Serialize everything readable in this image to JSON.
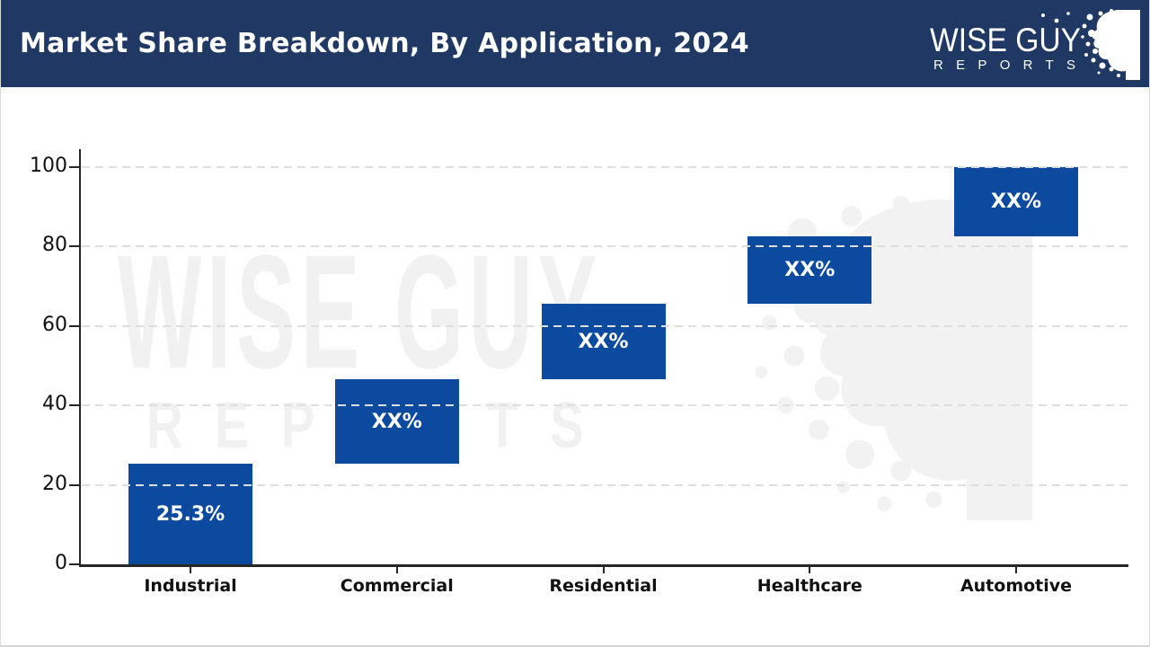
{
  "header": {
    "title": "Market Share Breakdown, By Application, 2024",
    "bg": "#1F3864",
    "logo": {
      "line1": "WISE GUY",
      "line2": "REPORTS"
    }
  },
  "watermark": {
    "line1": "WISE GUY",
    "line2": "REPORTS"
  },
  "chart_data": {
    "type": "bar",
    "subtype": "waterfall",
    "title": "Market Share Breakdown, By Application, 2024",
    "xlabel": "",
    "ylabel": "",
    "categories": [
      "Industrial",
      "Commercial",
      "Residential",
      "Healthcare",
      "Automotive"
    ],
    "segments": [
      {
        "category": "Industrial",
        "start": 0,
        "end": 25.3,
        "label": "25.3%"
      },
      {
        "category": "Commercial",
        "start": 25.3,
        "end": 46.6,
        "label": "XX%"
      },
      {
        "category": "Residential",
        "start": 46.6,
        "end": 65.5,
        "label": "XX%"
      },
      {
        "category": "Healthcare",
        "start": 65.5,
        "end": 82.5,
        "label": "XX%"
      },
      {
        "category": "Automotive",
        "start": 82.5,
        "end": 100,
        "label": "XX%"
      }
    ],
    "yticks": [
      0,
      20,
      40,
      60,
      80,
      100
    ],
    "ylim": [
      0,
      105
    ],
    "bar_color": "#0B4A9E",
    "label_color": "#ffffff",
    "grid": "horizontal-dashed",
    "legend": "none"
  }
}
